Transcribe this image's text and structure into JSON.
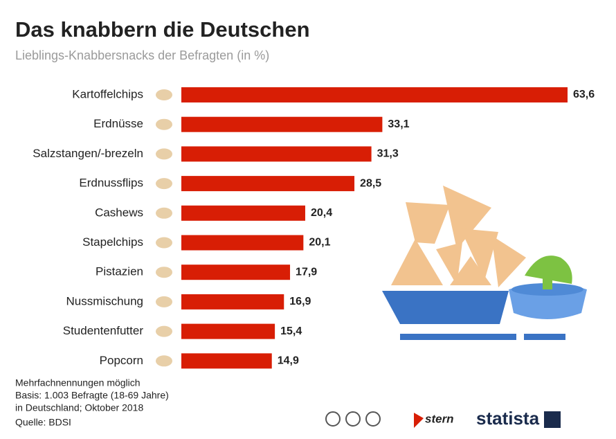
{
  "chart_data": {
    "type": "bar",
    "orientation": "horizontal",
    "title": "Das knabbern die Deutschen",
    "subtitle": "Lieblings-Knabbersnacks der Befragten (in %)",
    "categories": [
      "Kartoffelchips",
      "Erdnüsse",
      "Salzstangen/-brezeln",
      "Erdnussflips",
      "Cashews",
      "Stapelchips",
      "Pistazien",
      "Nussmischung",
      "Studentenfutter",
      "Popcorn"
    ],
    "values": [
      63.6,
      33.1,
      31.3,
      28.5,
      20.4,
      20.1,
      17.9,
      16.9,
      15.4,
      14.9
    ],
    "value_labels": [
      "63,6",
      "33,1",
      "31,3",
      "28,5",
      "20,4",
      "20,1",
      "17,9",
      "16,9",
      "15,4",
      "14,9"
    ],
    "color": "#d81e05",
    "notes": [
      "Mehrfachnennungen möglich",
      "Basis: 1.003 Befragte (18-69 Jahre)",
      "in Deutschland; Oktober 2018"
    ],
    "source": "Quelle: BDSI",
    "logos": [
      "stern",
      "statista"
    ]
  }
}
